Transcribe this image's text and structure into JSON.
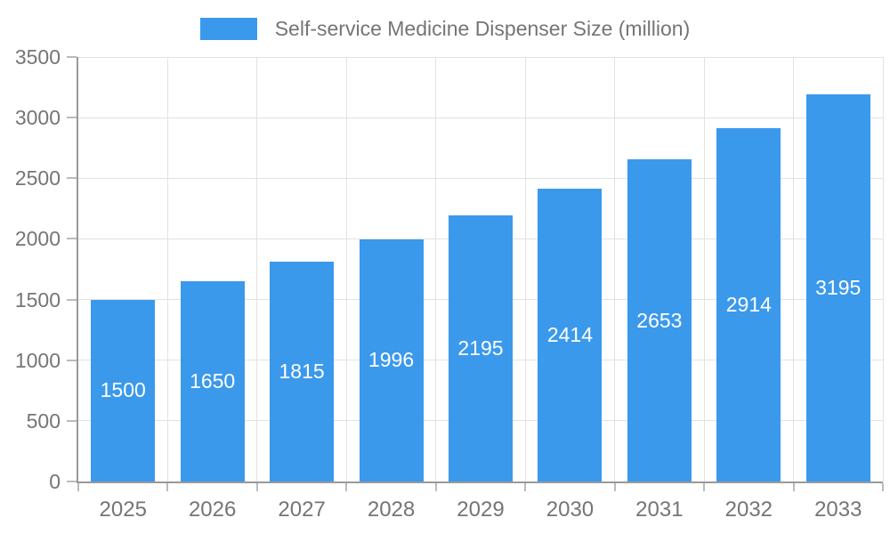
{
  "legend": {
    "label": "Self-service Medicine Dispenser Size (million)"
  },
  "chart_data": {
    "type": "bar",
    "title": "Self-service Medicine Dispenser Size (million)",
    "categories": [
      "2025",
      "2026",
      "2027",
      "2028",
      "2029",
      "2030",
      "2031",
      "2032",
      "2033"
    ],
    "values": [
      1500,
      1650,
      1815,
      1996,
      2195,
      2414,
      2653,
      2914,
      3195
    ],
    "xlabel": "",
    "ylabel": "",
    "ylim": [
      0,
      3500
    ],
    "ytick_step": 500,
    "ytick_labels": [
      "0",
      "500",
      "1000",
      "1500",
      "2000",
      "2500",
      "3000",
      "3500"
    ],
    "grid": true,
    "legend_position": "top",
    "value_labels_position": "inside-center",
    "colors": {
      "bar": "#3b99ec",
      "value_label": "#ffffff",
      "axis_text": "#757575",
      "gridline": "#e2e2e2",
      "axis_line": "#999999",
      "tick": "#bbbbbb"
    }
  }
}
